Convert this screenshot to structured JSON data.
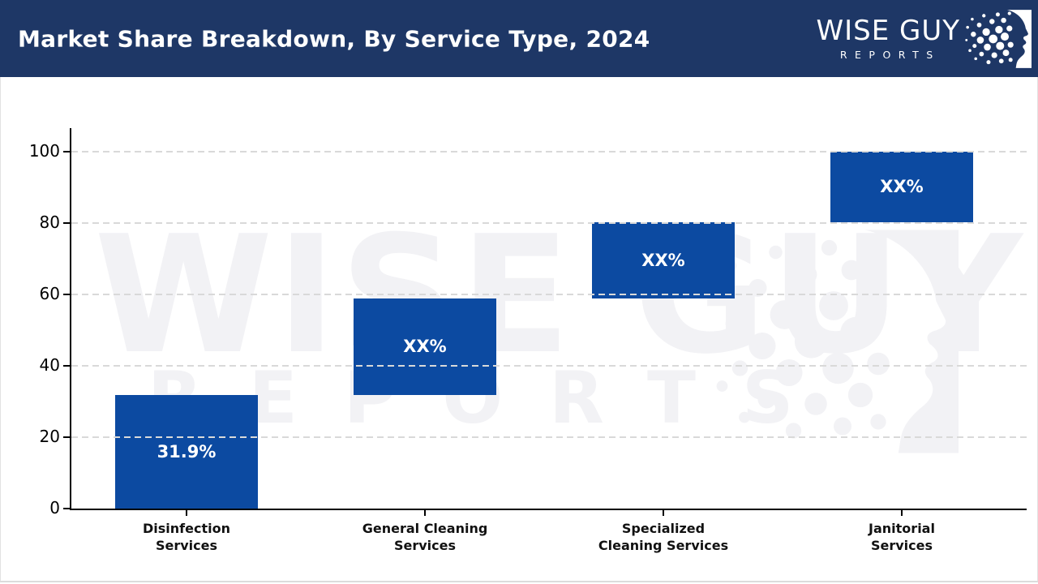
{
  "header": {
    "title": "Market Share Breakdown, By Service Type, 2024",
    "logo": {
      "wordmark": "WISE GUY",
      "subtext": "REPORTS"
    }
  },
  "watermark": {
    "wordmark": "WISE GUY",
    "subtext": "REPORTS"
  },
  "colors": {
    "header_bg": "#1e3766",
    "bar": "#0c4aa1",
    "grid": "#d9d9d9",
    "axis": "#000000",
    "watermark": "#f2f2f5",
    "title_text": "#ffffff",
    "value_label": "#ffffff",
    "category_label": "#111111"
  },
  "chart_data": {
    "type": "bar",
    "variant": "waterfall",
    "title": "Market Share Breakdown, By Service Type, 2024",
    "categories": [
      [
        "Disinfection",
        "Services"
      ],
      [
        "General Cleaning",
        "Services"
      ],
      [
        "Specialized",
        "Cleaning Services"
      ],
      [
        "Janitorial",
        "Services"
      ]
    ],
    "bars": [
      {
        "start": 0,
        "end": 31.9,
        "label": "31.9%"
      },
      {
        "start": 31.9,
        "end": 58.8,
        "label": "XX%"
      },
      {
        "start": 58.8,
        "end": 80.3,
        "label": "XX%"
      },
      {
        "start": 80.3,
        "end": 100,
        "label": "XX%"
      }
    ],
    "yticks": [
      0,
      20,
      40,
      60,
      80,
      100
    ],
    "ylim": [
      0,
      107
    ],
    "xlabel": "",
    "ylabel": "",
    "grid": "horizontal-dashed",
    "legend": "none"
  }
}
